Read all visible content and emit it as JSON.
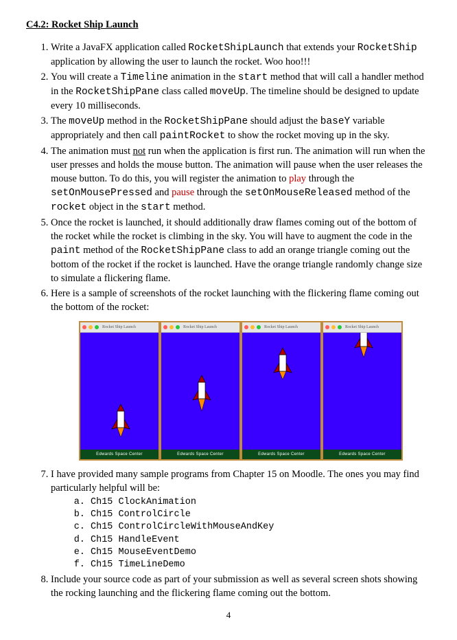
{
  "title": "C4.2: Rocket Ship Launch",
  "items": {
    "i1_a": "Write a JavaFX application called ",
    "i1_b": "RocketShipLaunch",
    "i1_c": " that extends your ",
    "i1_d": "RocketShip",
    "i1_e": " application by allowing the user to launch the rocket.  Woo hoo!!!",
    "i2_a": "You will create a ",
    "i2_b": "Timeline",
    "i2_c": " animation in the ",
    "i2_d": "start",
    "i2_e": " method that will call a handler method in the ",
    "i2_f": "RocketShipPane",
    "i2_g": " class called ",
    "i2_h": "moveUp",
    "i2_i": ".  The timeline should be designed to update every 10 milliseconds.",
    "i3_a": "The ",
    "i3_b": "moveUp",
    "i3_c": " method in the ",
    "i3_d": "RocketShipPane",
    "i3_e": " should adjust the ",
    "i3_f": "baseY",
    "i3_g": " variable appropriately and then call ",
    "i3_h": "paintRocket",
    "i3_i": " to show the rocket moving up in the sky.",
    "i4_a": "The animation must ",
    "i4_not": "not",
    "i4_b": " run when the application is first run.   The animation will run when the user presses and holds the mouse button.   The animation will pause when the user releases the mouse button.  To do this, you will register the animation to ",
    "i4_play": "play",
    "i4_c": " through the ",
    "i4_d": "setOnMousePressed",
    "i4_e": " and ",
    "i4_pause": "pause",
    "i4_f": " through the ",
    "i4_g": "setOnMouseReleased",
    "i4_h": " method of the ",
    "i4_i": "rocket",
    "i4_j": " object in the ",
    "i4_k": "start",
    "i4_l": " method.",
    "i5_a": "Once the rocket is launched, it should additionally draw flames coming out of the bottom of the rocket while the rocket is climbing in the sky.  You will have to augment the code in the ",
    "i5_b": "paint",
    "i5_c": " method of the ",
    "i5_d": "RocketShipPane",
    "i5_e": " class to add an orange triangle coming out the bottom of the rocket if the rocket is launched.  Have the orange triangle randomly change size to simulate a flickering flame.",
    "i6": "Here is a sample of screenshots of the rocket launching with the flickering flame coming out the bottom of the rocket:",
    "i7": "I have provided many sample programs from Chapter 15 on Moodle.   The ones you may find particularly helpful will be:",
    "i8": "Include your source code as part of your submission as well as several screen shots showing the rocking launching and the flickering flame coming out the bottom."
  },
  "samples": {
    "a": "Ch15 ClockAnimation",
    "b": "Ch15 ControlCircle",
    "c": "Ch15 ControlCircleWithMouseAndKey",
    "d": "Ch15 HandleEvent",
    "e": "Ch15 MouseEventDemo",
    "f": "Ch15 TimeLineDemo"
  },
  "windowTitle": "Rocket Ship Launch",
  "footerText": "Edwards Space Center",
  "rocket": {
    "body_color": "#ffffff",
    "cone_color": "#b00000",
    "fin_color": "#b00000",
    "flame_color": "#ff8c00",
    "outline": "#000000",
    "positions_y": [
      138,
      96,
      56,
      20
    ],
    "flame_heights": [
      14,
      18,
      12,
      16
    ]
  },
  "colors": {
    "sky": "#3a00ff",
    "ground": "#0a4a1b",
    "frame": "#c28b3a"
  },
  "pageNumber": "4"
}
